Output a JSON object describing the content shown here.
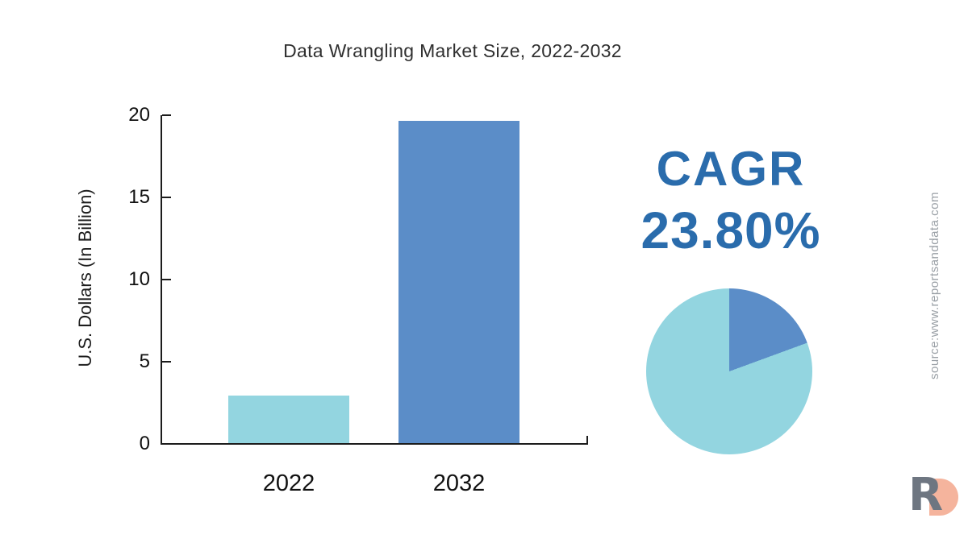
{
  "title": "Data Wrangling Market Size, 2022-2032",
  "chart_data": {
    "type": "bar",
    "categories": [
      "2022",
      "2032"
    ],
    "values": [
      2.9,
      19.6
    ],
    "title": "Data Wrangling Market Size, 2022-2032",
    "xlabel": "",
    "ylabel": "U.S. Dollars (In Billion)",
    "ylim": [
      0,
      20
    ],
    "yticks": [
      0,
      5,
      10,
      15,
      20
    ],
    "bar_colors": [
      "#93d5e0",
      "#5b8dc8"
    ],
    "grid": false,
    "legend": "none"
  },
  "cagr": {
    "label": "CAGR",
    "value": "23.80%",
    "color": "#2a6cac"
  },
  "pie_chart": {
    "type": "pie",
    "slices": [
      {
        "name": "highlight-slice",
        "percent": 19.4,
        "color": "#5b8dc8"
      },
      {
        "name": "remainder-slice",
        "percent": 80.6,
        "color": "#93d5e0"
      }
    ],
    "start_angle_deg": 0
  },
  "source": {
    "text": "source:www.reportsanddata.com"
  },
  "logo": {
    "r_text": "R",
    "r_color": "#6e7681",
    "d_color": "#f5b49d"
  }
}
